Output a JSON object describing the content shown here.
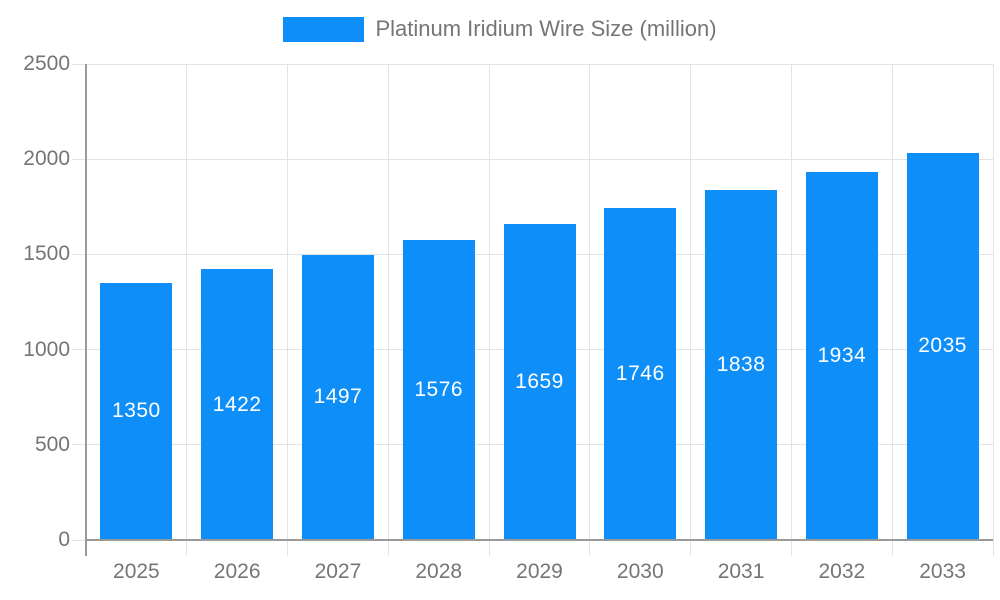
{
  "chart_data": {
    "type": "bar",
    "title": "Platinum Iridium Wire Size (million)",
    "categories": [
      "2025",
      "2026",
      "2027",
      "2028",
      "2029",
      "2030",
      "2031",
      "2032",
      "2033"
    ],
    "values": [
      1350,
      1422,
      1497,
      1576,
      1659,
      1746,
      1838,
      1934,
      2035
    ],
    "xlabel": "",
    "ylabel": "",
    "ylim": [
      0,
      2500
    ],
    "yticks": [
      0,
      500,
      1000,
      1500,
      2000,
      2500
    ],
    "grid": true,
    "legend_position": "top",
    "bar_labels_visible": true,
    "colors": {
      "bar": "#0d8ef8",
      "bar_label": "#ffffff",
      "axis_text": "#757575",
      "legend_text": "#757575",
      "grid_line": "#e3e3e3",
      "axis_line": "#999999",
      "background": "#ffffff"
    }
  }
}
